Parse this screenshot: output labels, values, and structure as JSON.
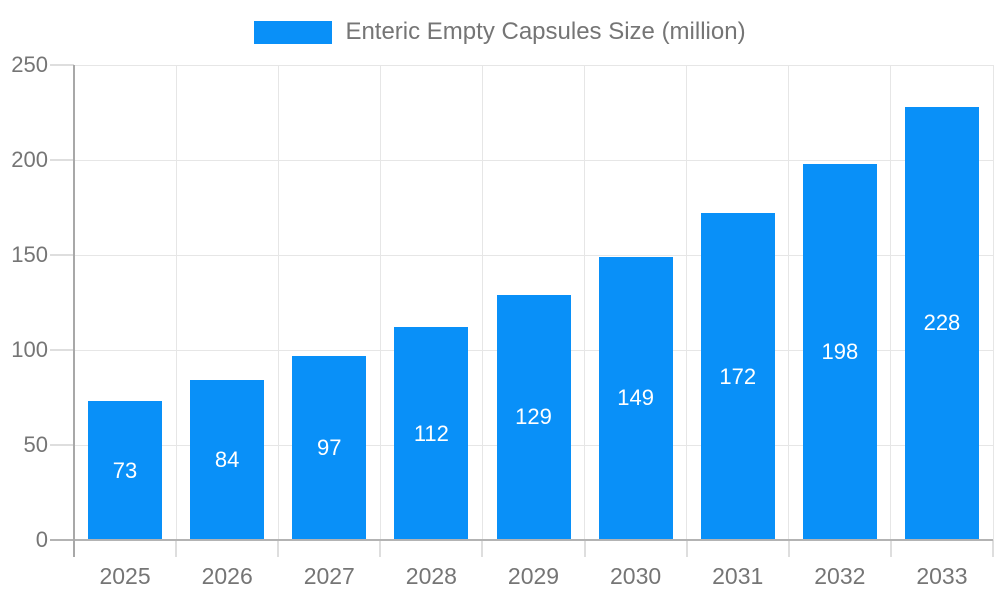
{
  "legend": {
    "label": "Enteric Empty Capsules Size (million)"
  },
  "chart_data": {
    "type": "bar",
    "title": "Enteric Empty Capsules Size (million)",
    "categories": [
      "2025",
      "2026",
      "2027",
      "2028",
      "2029",
      "2030",
      "2031",
      "2032",
      "2033"
    ],
    "values": [
      73,
      84,
      97,
      112,
      129,
      149,
      172,
      198,
      228
    ],
    "series": [
      {
        "name": "Enteric Empty Capsules Size (million)",
        "values": [
          73,
          84,
          97,
          112,
          129,
          149,
          172,
          198,
          228
        ]
      }
    ],
    "xlabel": "",
    "ylabel": "",
    "ylim": [
      0,
      250
    ],
    "y_ticks": [
      0,
      50,
      100,
      150,
      200,
      250
    ],
    "grid": true,
    "legend_position": "top",
    "value_labels": "centered-inside-bars",
    "colors": {
      "bar": "#0990F8",
      "value_label": "#ffffff",
      "axis_text": "#757575",
      "legend_text": "#757575",
      "gridline": "#e6e6e6",
      "tick": "#dedede",
      "x_axis_line": "#b3b3b3",
      "y_axis_line": "#a8a8a8",
      "background": "#ffffff"
    }
  }
}
